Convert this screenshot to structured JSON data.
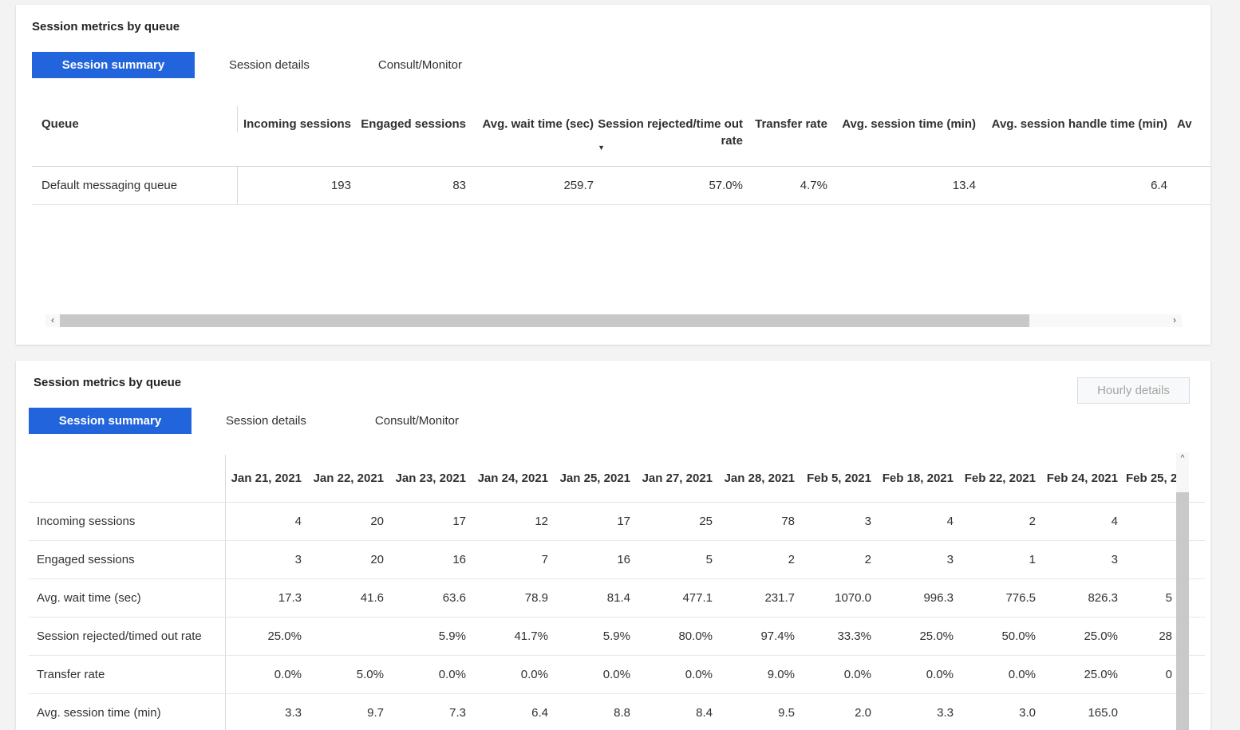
{
  "colors": {
    "accent": "#2264dc",
    "page_bg": "#f3f3f3",
    "card_bg": "#ffffff",
    "thumb": "#c8c8c8",
    "disabled_text": "#a5a3a1"
  },
  "top_panel": {
    "title": "Session metrics by queue",
    "tabs": {
      "summary": "Session summary",
      "details": "Session details",
      "consult": "Consult/Monitor"
    },
    "table": {
      "headers": {
        "queue": "Queue",
        "incoming": "Incoming sessions",
        "engaged": "Engaged sessions",
        "wait": "Avg. wait time (sec)",
        "rejected": "Session rejected/time out rate",
        "transfer": "Transfer rate",
        "session_time": "Avg. session time (min)",
        "handle_time": "Avg. session handle time (min)",
        "truncated": "Av"
      },
      "sort_indicator": "▼",
      "row": {
        "queue": "Default messaging queue",
        "incoming": "193",
        "engaged": "83",
        "wait": "259.7",
        "rejected": "57.0%",
        "transfer": "4.7%",
        "session_time": "13.4",
        "handle_time": "6.4"
      }
    },
    "hscroll": {
      "left_arrow": "‹",
      "right_arrow": "›"
    }
  },
  "bottom_panel": {
    "title": "Session metrics by queue",
    "hourly_button": "Hourly details",
    "tabs": {
      "summary": "Session summary",
      "details": "Session details",
      "consult": "Consult/Monitor"
    },
    "table": {
      "dates": [
        "Jan 21, 2021",
        "Jan 22, 2021",
        "Jan 23, 2021",
        "Jan 24, 2021",
        "Jan 25, 2021",
        "Jan 27, 2021",
        "Jan 28, 2021",
        "Feb 5, 2021",
        "Feb 18, 2021",
        "Feb 22, 2021",
        "Feb 24, 2021",
        "Feb 25, 2"
      ],
      "rows": [
        {
          "label": "Incoming sessions",
          "values": [
            "4",
            "20",
            "17",
            "12",
            "17",
            "25",
            "78",
            "3",
            "4",
            "2",
            "4",
            ""
          ]
        },
        {
          "label": "Engaged sessions",
          "values": [
            "3",
            "20",
            "16",
            "7",
            "16",
            "5",
            "2",
            "2",
            "3",
            "1",
            "3",
            ""
          ]
        },
        {
          "label": "Avg. wait time (sec)",
          "values": [
            "17.3",
            "41.6",
            "63.6",
            "78.9",
            "81.4",
            "477.1",
            "231.7",
            "1070.0",
            "996.3",
            "776.5",
            "826.3",
            "5"
          ]
        },
        {
          "label": "Session rejected/timed out rate",
          "values": [
            "25.0%",
            "",
            "5.9%",
            "41.7%",
            "5.9%",
            "80.0%",
            "97.4%",
            "33.3%",
            "25.0%",
            "50.0%",
            "25.0%",
            "28"
          ]
        },
        {
          "label": "Transfer rate",
          "values": [
            "0.0%",
            "5.0%",
            "0.0%",
            "0.0%",
            "0.0%",
            "0.0%",
            "9.0%",
            "0.0%",
            "0.0%",
            "0.0%",
            "25.0%",
            "0"
          ]
        },
        {
          "label": "Avg. session time (min)",
          "values": [
            "3.3",
            "9.7",
            "7.3",
            "6.4",
            "8.8",
            "8.4",
            "9.5",
            "2.0",
            "3.3",
            "3.0",
            "165.0",
            ""
          ]
        }
      ]
    },
    "vscroll": {
      "up_arrow": "^"
    }
  }
}
